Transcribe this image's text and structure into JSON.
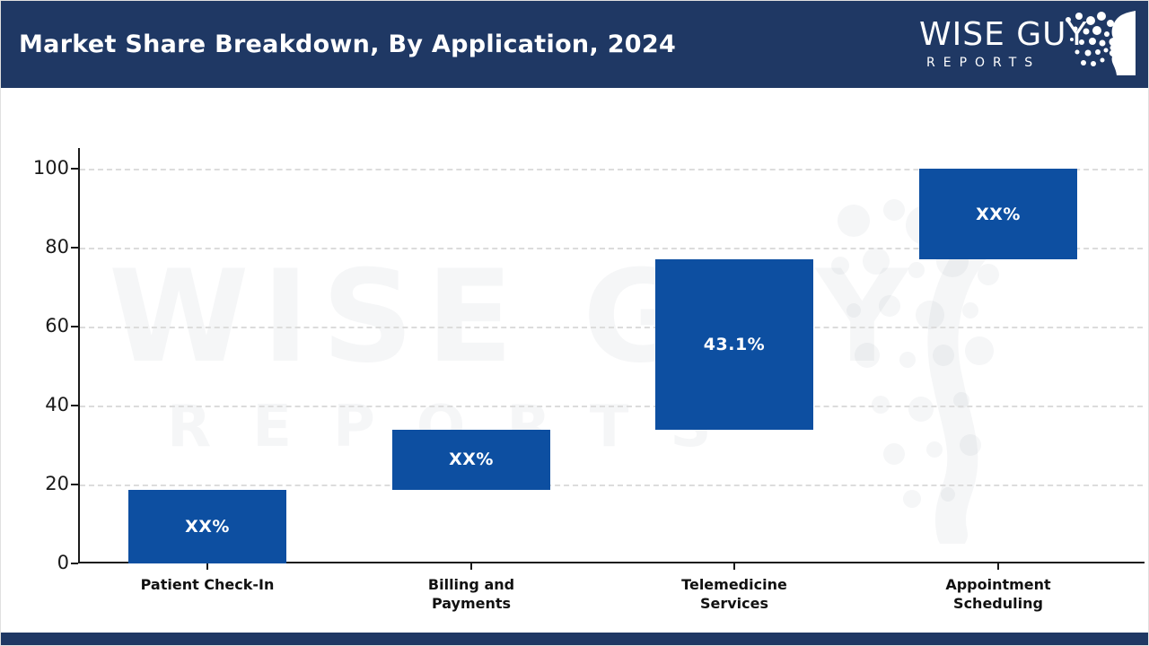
{
  "header": {
    "title": "Market Share Breakdown, By Application, 2024",
    "brand": {
      "name_top": "WISE GUY",
      "name_bottom": "R E P O R T S"
    }
  },
  "watermark": {
    "line1": "WISE GUY",
    "line2": "REPORTS"
  },
  "colors": {
    "header_bg": "#1f3864",
    "bar_fill": "#0d4fa1",
    "bar_label_text": "#ffffff",
    "gridline": "#dcdcdc",
    "axis": "#1a1a1a",
    "category_text": "#111111"
  },
  "chart_data": {
    "type": "bar",
    "subtype": "waterfall",
    "title": "Market Share Breakdown, By Application, 2024",
    "categories": [
      "Patient Check-In",
      "Billing and\nPayments",
      "Telemedicine\nServices",
      "Appointment\nScheduling"
    ],
    "series": [
      {
        "name": "Market Share (%)",
        "segments": [
          {
            "category": "Patient Check-In",
            "start": 0,
            "end": 18.6,
            "value_label": "XX%"
          },
          {
            "category": "Billing and Payments",
            "start": 18.6,
            "end": 33.9,
            "value_label": "XX%"
          },
          {
            "category": "Telemedicine Services",
            "start": 33.9,
            "end": 77.0,
            "value_label": "43.1%"
          },
          {
            "category": "Appointment Scheduling",
            "start": 77.0,
            "end": 100,
            "value_label": "XX%"
          }
        ]
      }
    ],
    "ylim": [
      0,
      100
    ],
    "yticks": [
      0,
      20,
      40,
      60,
      80,
      100
    ],
    "xlabel": "",
    "ylabel": "",
    "grid": "horizontal-dashed",
    "legend_position": "none"
  }
}
